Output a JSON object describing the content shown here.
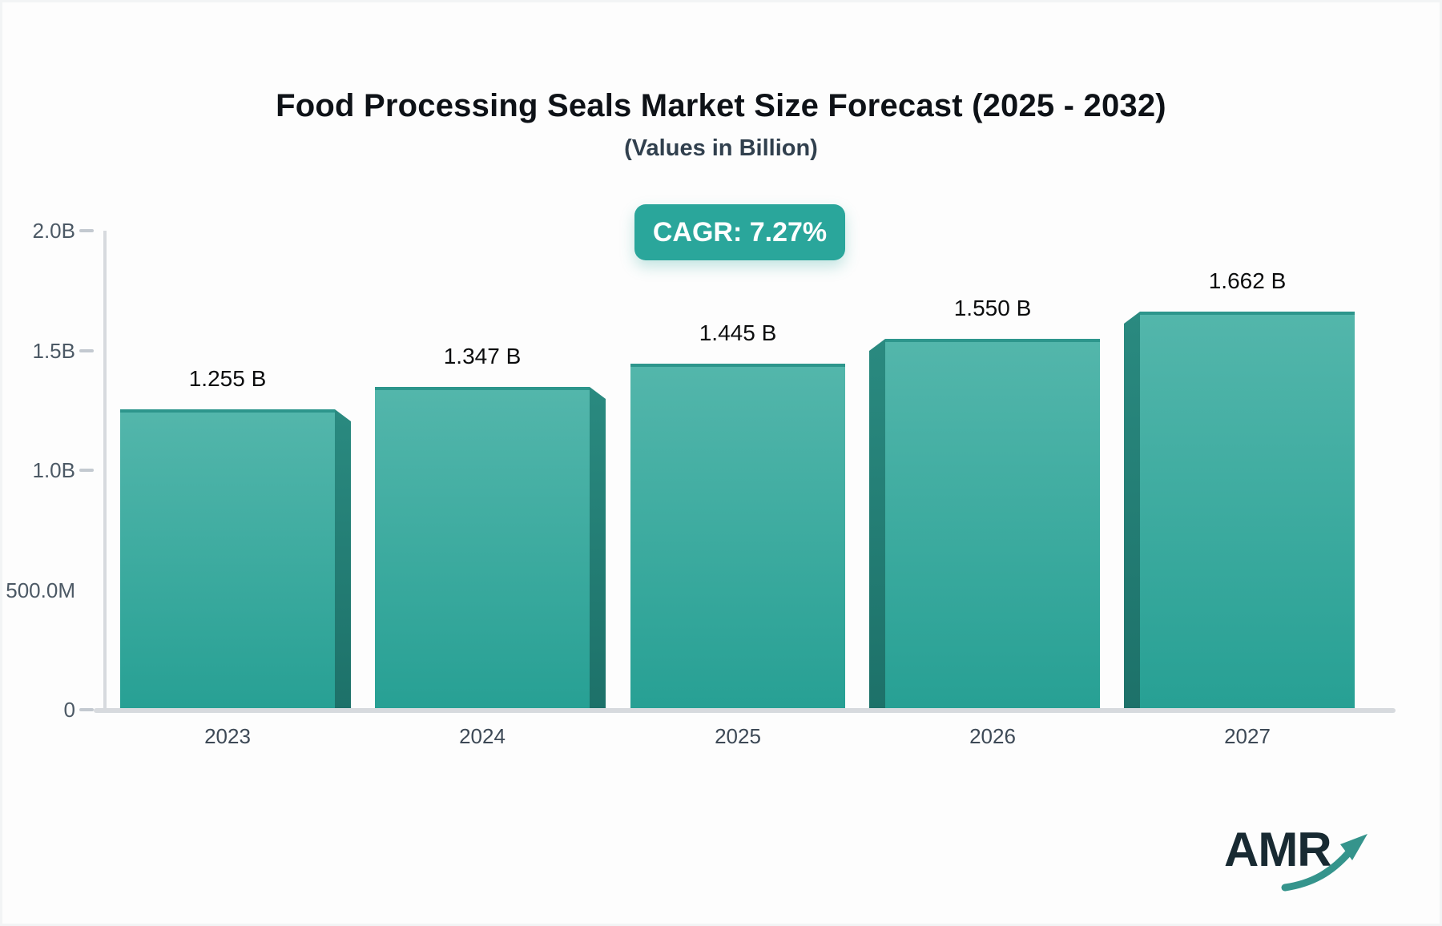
{
  "title": "Food Processing Seals Market Size Forecast (2025 - 2032)",
  "subtitle": "(Values in Billion)",
  "cagr_badge": "CAGR: 7.27%",
  "logo": {
    "text": "AMR",
    "arrow_icon": "growth-arrow-icon"
  },
  "colors": {
    "bar_top": "#53b6ab",
    "bar_bottom": "#27a094",
    "bar_side_light": "#2a8a80",
    "bar_side": "#1d7169",
    "bar_top_edge": "#2d968c",
    "badge_bg": "#2aa69b",
    "badge_text": "#ffffff",
    "axis_line": "#d7dade",
    "tick": "#c3c9d0",
    "axis_label": "#4c5965",
    "category_label": "#3d4956",
    "value_label": "#0c0d0e",
    "title_color": "#0e1217",
    "subtitle_color": "#31404e",
    "logo_text": "#182a32",
    "logo_arrow": "#35948c",
    "background": "#fdfdfd"
  },
  "chart_data": {
    "type": "bar",
    "title": "Food Processing Seals Market Size Forecast (2025 - 2032)",
    "subtitle": "(Values in Billion)",
    "annotation": "CAGR: 7.27%",
    "categories": [
      "2023",
      "2024",
      "2025",
      "2026",
      "2027"
    ],
    "values": [
      1.255,
      1.347,
      1.445,
      1.55,
      1.662
    ],
    "value_labels": [
      "1.255 B",
      "1.347 B",
      "1.445 B",
      "1.550 B",
      "1.662 B"
    ],
    "unit": "Billion",
    "ylim": [
      0,
      2.0
    ],
    "y_axis": {
      "labels": [
        "2.0B",
        "1.5B",
        "1.0B",
        "500.0M",
        "0"
      ],
      "values": [
        2.0,
        1.5,
        1.0,
        0.5,
        0
      ],
      "tick_dash": [
        true,
        true,
        true,
        false,
        true
      ]
    },
    "grid": false,
    "legend": "none",
    "bar_style": "3d-extruded bars with center perspective (side faces angle toward middle bar)"
  }
}
